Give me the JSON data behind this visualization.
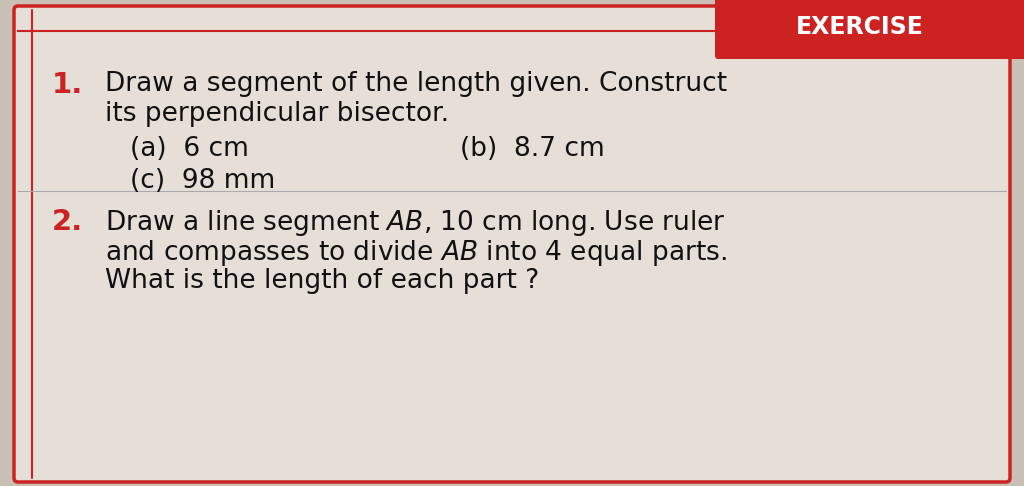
{
  "background_color": "#c8bfb5",
  "page_bg": "#e5dfd8",
  "border_color": "#cc2222",
  "exercise_label": "EXERCISE",
  "exercise_bg": "#cc2222",
  "exercise_text_color": "#ffffff",
  "q1_number": "1.",
  "q1_number_color": "#cc2222",
  "q1_text_line1": "Draw a segment of the length given. Construct",
  "q1_text_line2": "its perpendicular bisector.",
  "q1_a": "(a)  6 cm",
  "q1_b": "(b)  8.7 cm",
  "q1_c": "(c)  98 mm",
  "q2_number": "2.",
  "q2_number_color": "#cc2222",
  "q2_line1_pre": "Draw a line segment ",
  "q2_line1_italic": "AB",
  "q2_line1_post": ", 10 cm long. Use ruler",
  "q2_line2_pre": "and compasses to divide ",
  "q2_line2_italic": "AB",
  "q2_line2_post": " into 4 equal parts.",
  "q2_line3": "What is the length of each part ?",
  "text_color": "#111111",
  "font_size_main": 19,
  "font_size_exercise": 17
}
